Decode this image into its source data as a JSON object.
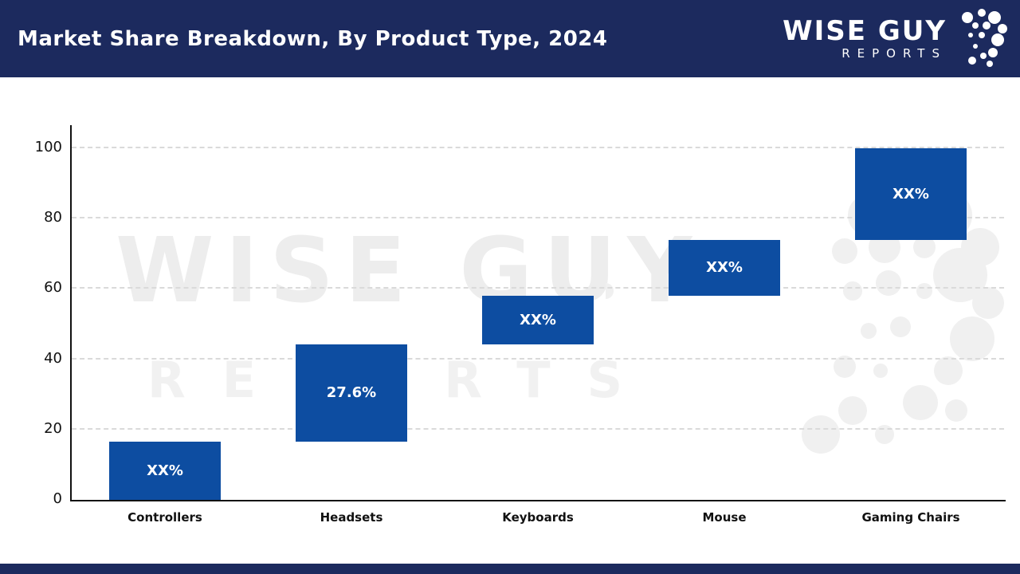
{
  "header": {
    "title": "Market Share Breakdown, By Product Type, 2024",
    "brand_line1": "WISE GUY",
    "brand_line2": "REPORTS"
  },
  "watermark": {
    "line1": "WISE GUY",
    "line2": "REPORTS"
  },
  "chart_data": {
    "type": "bar",
    "subtype": "waterfall",
    "title": "Market Share Breakdown, By Product Type, 2024",
    "categories": [
      "Controllers",
      "Headsets",
      "Keyboards",
      "Mouse",
      "Gaming Chairs"
    ],
    "series": [
      {
        "name": "Market Share",
        "ranges": [
          [
            0,
            16.6
          ],
          [
            16.6,
            44.2
          ],
          [
            44.2,
            58.0
          ],
          [
            58.0,
            74.0
          ],
          [
            74.0,
            100.0
          ]
        ]
      }
    ],
    "bar_labels": [
      "XX%",
      "27.6%",
      "XX%",
      "XX%",
      "XX%"
    ],
    "yticks": [
      0,
      20,
      40,
      60,
      80,
      100
    ],
    "ylim": [
      0,
      106
    ],
    "xlabel": "",
    "ylabel": "",
    "grid": "dashed-horizontal",
    "legend": "none",
    "bar_color": "#0d4da1",
    "label_color": "#ffffff"
  },
  "colors": {
    "header_bg": "#1c2a5e",
    "footer_bg": "#1c2a5e",
    "bar": "#0d4da1",
    "watermark": "#ededed",
    "axis": "#111111"
  }
}
